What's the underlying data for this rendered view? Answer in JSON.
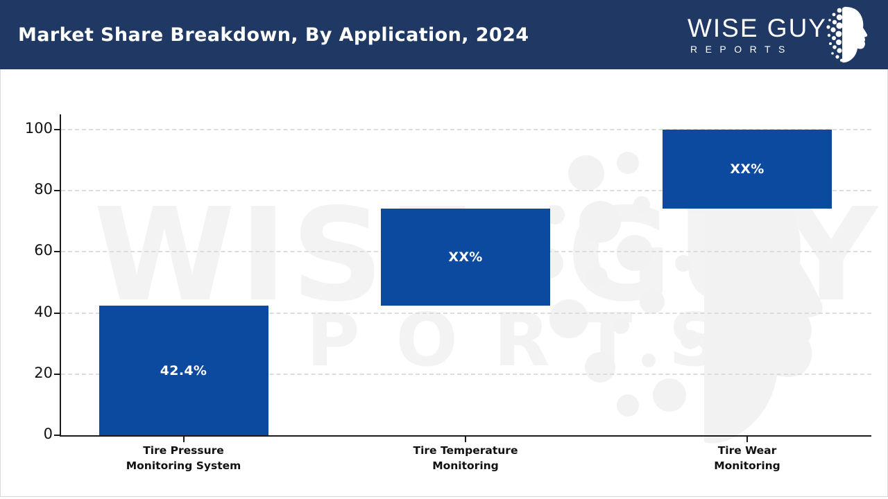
{
  "header": {
    "title": "Market Share Breakdown, By Application, 2024",
    "bg_color": "#1f3864",
    "logo": {
      "line1": "WISE GUY",
      "line2": "REPORTS"
    }
  },
  "watermark": {
    "line1": "WISE GUY",
    "line2": "REPORTS"
  },
  "chart_data": {
    "type": "bar",
    "variant": "stacked-waterfall (floating segment bars)",
    "title": "Market Share Breakdown, By Application, 2024",
    "categories": [
      [
        "Tire Pressure",
        "Monitoring System"
      ],
      [
        "Tire Temperature",
        "Monitoring"
      ],
      [
        "Tire Wear",
        "Monitoring"
      ]
    ],
    "segments": [
      {
        "category": "Tire Pressure Monitoring System",
        "start": 0,
        "end": 42.4,
        "value_label": "42.4%"
      },
      {
        "category": "Tire Temperature Monitoring",
        "start": 42.4,
        "end": 74.2,
        "value_label": "XX%"
      },
      {
        "category": "Tire Wear Monitoring",
        "start": 74.2,
        "end": 100,
        "value_label": "XX%"
      }
    ],
    "y_ticks": [
      0,
      20,
      40,
      60,
      80,
      100
    ],
    "ylim": [
      0,
      105
    ],
    "grid": {
      "horizontal": true,
      "style": "dashed",
      "color": "#dcdcdc"
    },
    "bar_color": "#0b4a9e",
    "bar_label_color": "#ffffff",
    "axis_color": "#1a1a1a",
    "legend": "none"
  }
}
